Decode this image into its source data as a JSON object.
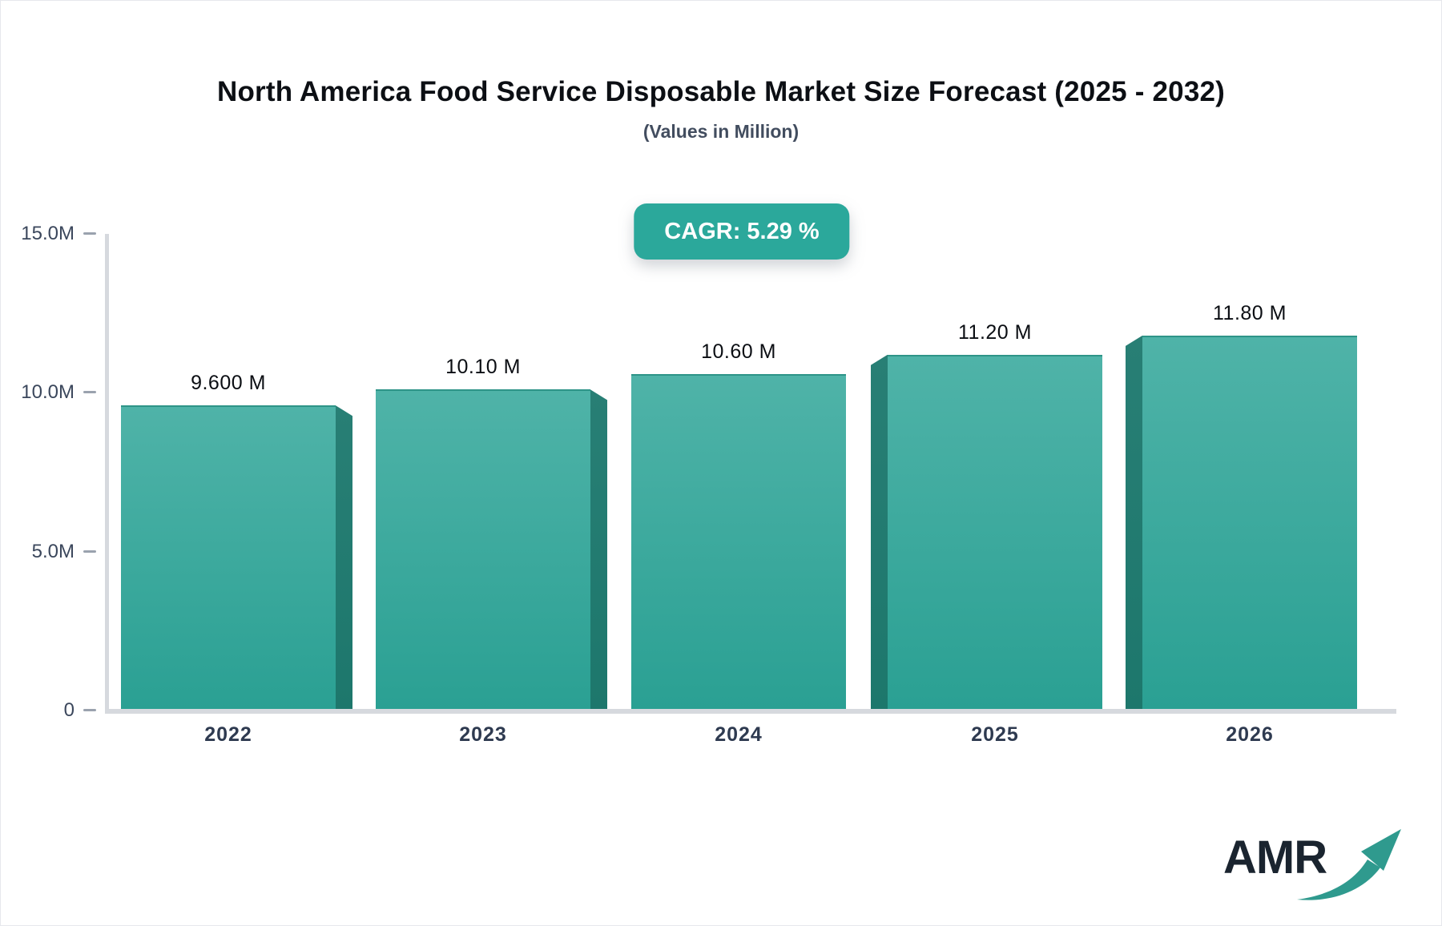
{
  "header": {
    "title": "North America Food Service Disposable Market Size Forecast (2025 - 2032)",
    "subtitle": "(Values in Million)",
    "cagr_badge": "CAGR: 5.29 %"
  },
  "chart_data": {
    "type": "bar",
    "title": "North America Food Service Disposable Market Size Forecast (2025 - 2032)",
    "subtitle": "(Values in Million)",
    "annotation": "CAGR: 5.29 %",
    "categories": [
      "2022",
      "2023",
      "2024",
      "2025",
      "2026"
    ],
    "values": [
      9.6,
      10.1,
      10.6,
      11.2,
      11.8
    ],
    "value_labels": [
      "9.600 M",
      "10.10 M",
      "10.60 M",
      "11.20 M",
      "11.80 M"
    ],
    "values_unit": "M",
    "xlabel": "",
    "ylabel": "",
    "ylim": [
      0,
      15
    ],
    "y_ticks": [
      {
        "value": 15,
        "label": "15.0M"
      },
      {
        "value": 10,
        "label": "10.0M"
      },
      {
        "value": 5,
        "label": "5.0M"
      },
      {
        "value": 0,
        "label": "0"
      }
    ],
    "grid": false,
    "legend": false,
    "bar_style": "3d-extruded, center vanishing point"
  },
  "colors": {
    "accent_teal": "#2ba89b",
    "badge_bg": "#2ba89b",
    "badge_text": "#ffffff",
    "bar_face_top": "#4fb3a8",
    "bar_face_bottom": "#2aa093",
    "bar_side_top": "#287f75",
    "bar_side_bottom": "#1d776c",
    "bar_top_edge": "#2e9488",
    "axis_line": "#d6d9de",
    "tick_mark": "#9aa2ae",
    "y_tick_text": "#3b475c",
    "x_tick_text": "#2e3a50",
    "value_text": "#0b0e13",
    "title_text": "#0c0f14",
    "subtitle_text": "#424d5f",
    "logo_text_color": "#1a242f",
    "logo_arrow_color": "#2f9a8e"
  },
  "logo": {
    "text": "AMR"
  }
}
